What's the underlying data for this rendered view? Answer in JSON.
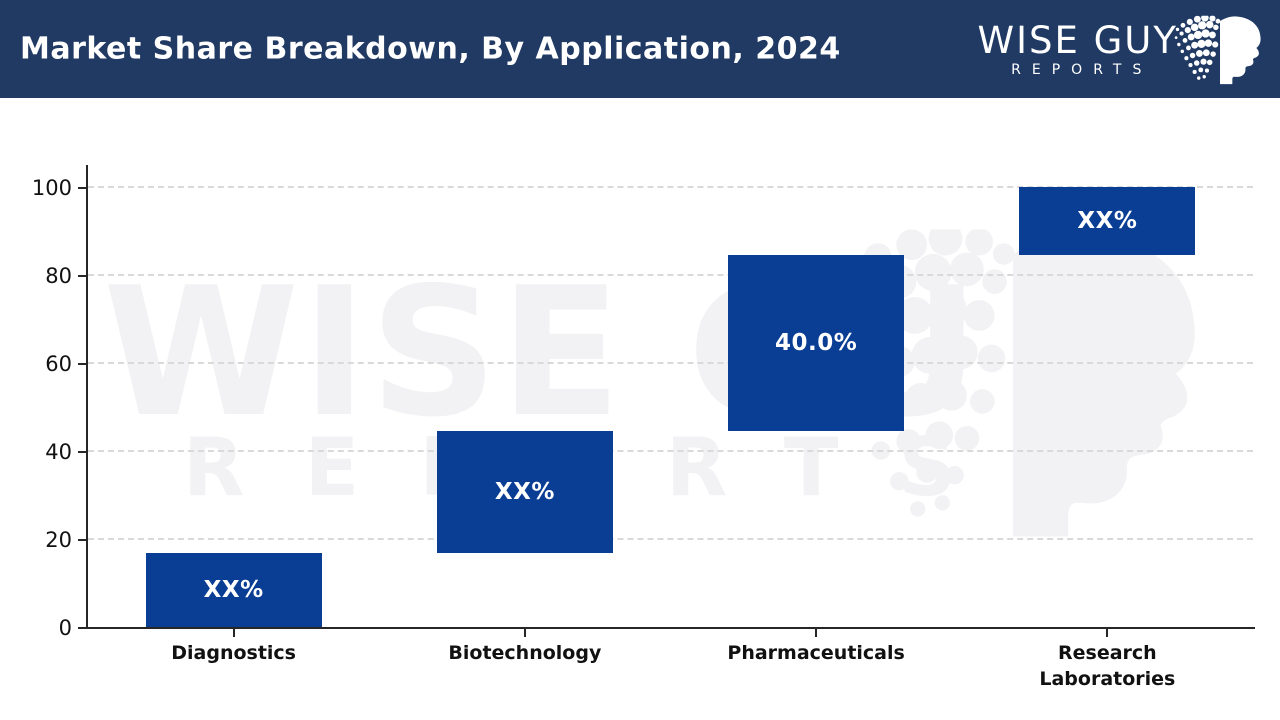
{
  "header": {
    "title": "Market Share Breakdown, By Application, 2024",
    "logo_line1": "WISE GUY",
    "logo_line2": "REPORTS",
    "bg_color": "#203a64"
  },
  "watermark": {
    "line1": "WISE GU",
    "line2": "REPORTS"
  },
  "chart_data": {
    "type": "bar",
    "subtype": "waterfall",
    "title": "Market Share Breakdown, By Application, 2024",
    "categories": [
      "Diagnostics",
      "Biotechnology",
      "Pharmaceuticals",
      "Research\nLaboratories"
    ],
    "segments": [
      {
        "category": "Diagnostics",
        "start": 0,
        "end": 16.8,
        "label": "XX%"
      },
      {
        "category": "Biotechnology",
        "start": 16.8,
        "end": 44.5,
        "label": "XX%"
      },
      {
        "category": "Pharmaceuticals",
        "start": 44.5,
        "end": 84.5,
        "label": "40.0%"
      },
      {
        "category": "Research Laboratories",
        "start": 84.5,
        "end": 100,
        "label": "XX%"
      }
    ],
    "yticks": [
      0,
      20,
      40,
      60,
      80,
      100
    ],
    "ylim": [
      0,
      105
    ],
    "xlabel": "",
    "ylabel": "",
    "grid": "horizontal-dashed",
    "legend": null,
    "bar_color": "#0a3e94",
    "bar_label_color": "#ffffff",
    "axis_color": "#262626",
    "gridline_color": "#d9d9d9"
  }
}
